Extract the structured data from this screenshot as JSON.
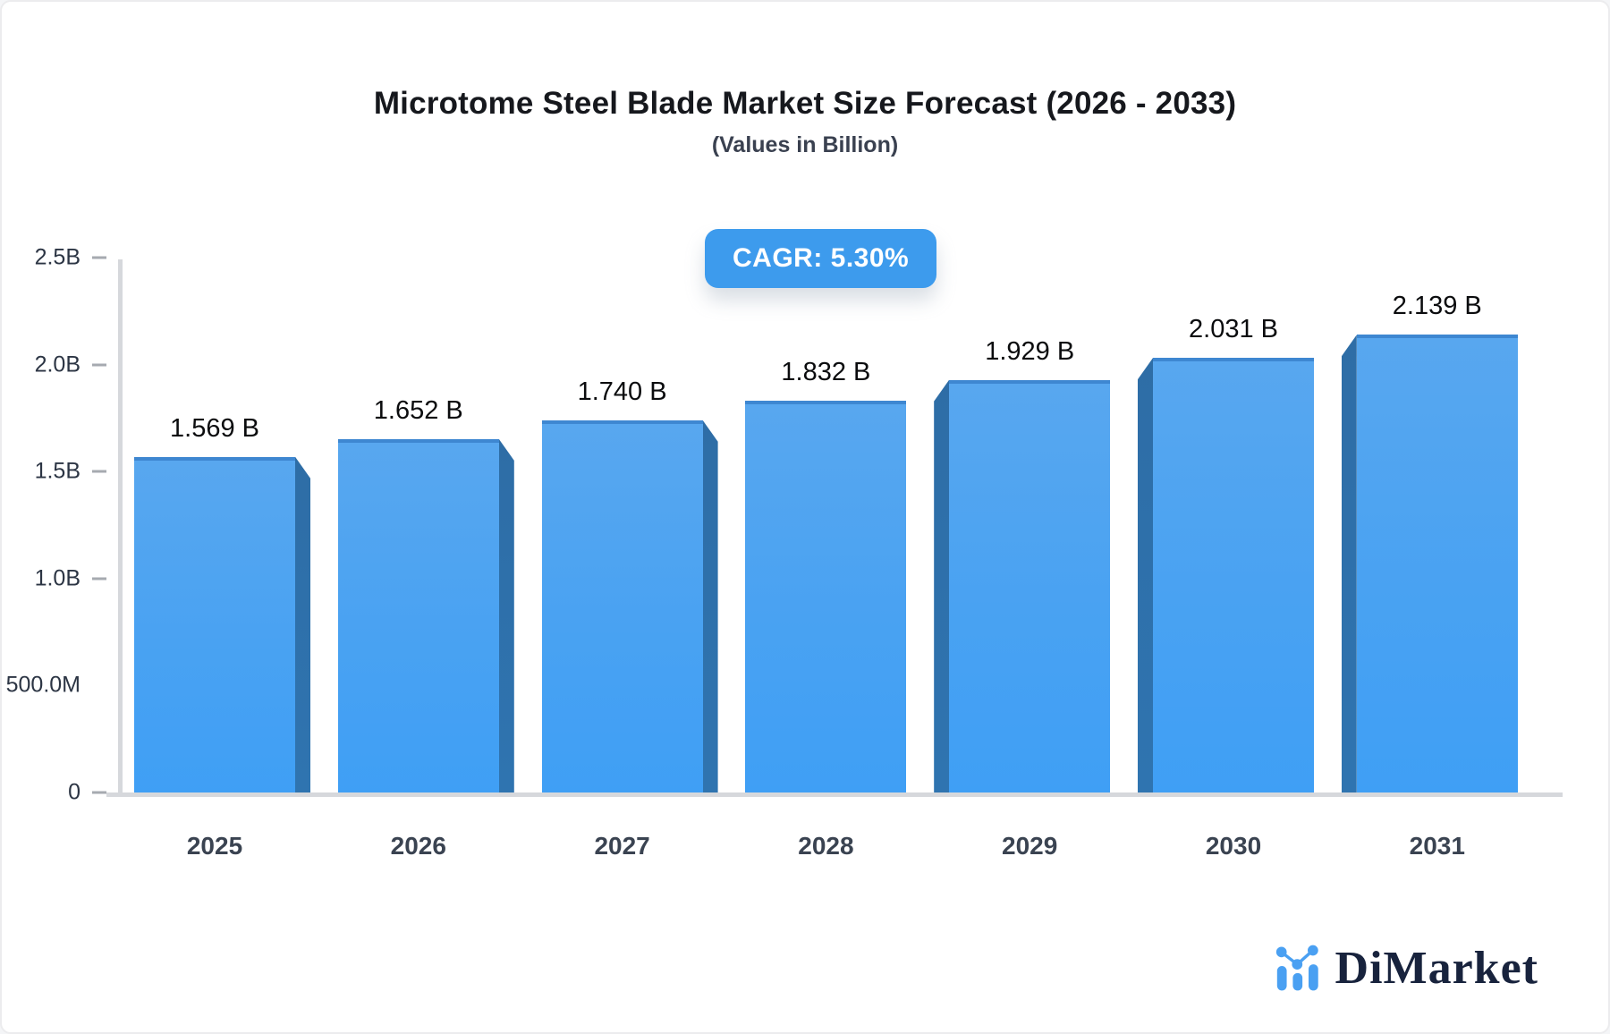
{
  "header": {
    "title": "Microtome Steel Blade Market Size Forecast (2026 - 2033)",
    "subtitle": "(Values in Billion)"
  },
  "badge": {
    "label": "CAGR: 5.30%",
    "bg_color": "#3d9bed",
    "text_color": "#ffffff"
  },
  "chart_data": {
    "type": "bar",
    "title": "Microtome Steel Blade Market Size Forecast (2026 - 2033)",
    "subtitle": "(Values in Billion)",
    "categories": [
      "2025",
      "2026",
      "2027",
      "2028",
      "2029",
      "2030",
      "2031"
    ],
    "values_billions": [
      1.569,
      1.652,
      1.74,
      1.832,
      1.929,
      2.031,
      2.139
    ],
    "bar_labels": [
      "1.569 B",
      "1.652 B",
      "1.740 B",
      "1.832 B",
      "1.929 B",
      "2.031 B",
      "2.139 B"
    ],
    "y_ticks": [
      {
        "label": "2.5B",
        "value_billions": 2.5,
        "dash": true
      },
      {
        "label": "2.0B",
        "value_billions": 2.0,
        "dash": true
      },
      {
        "label": "1.5B",
        "value_billions": 1.5,
        "dash": true
      },
      {
        "label": "1.0B",
        "value_billions": 1.0,
        "dash": true
      },
      {
        "label": "500.0M",
        "value_billions": 0.5,
        "dash": false
      },
      {
        "label": "0",
        "value_billions": 0,
        "dash": true
      }
    ],
    "ylim_billions": [
      0,
      2.5
    ],
    "grid": false,
    "legend": "none",
    "cagr": "5.30%",
    "colors": {
      "bar_face_top": "#58a7ef",
      "bar_face_bottom": "#3f9ff5",
      "bar_top_edge": "#3e87d1",
      "bar_side_3d": "#2f74b0",
      "axis_line": "#d6d8dc",
      "tick_text": "#2c3544",
      "category_text": "#3a4351",
      "value_text": "#0b0c0e"
    }
  },
  "footer": {
    "brand": "DiMarket",
    "logo_icon": "bar-chart-trend-icon"
  }
}
